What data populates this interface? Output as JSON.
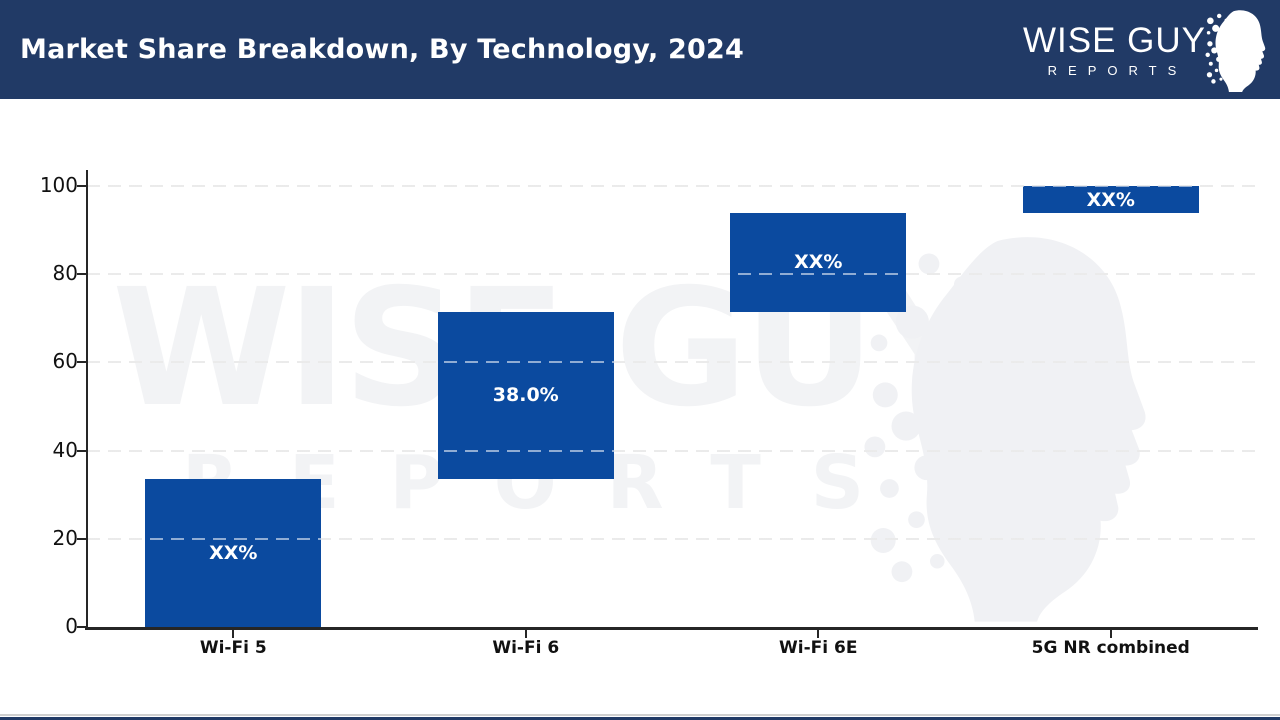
{
  "header": {
    "title": "Market Share Breakdown, By Technology, 2024",
    "logo": {
      "line1": "WISE GUY",
      "line2": "REPORTS"
    }
  },
  "watermark": {
    "line1": "WISE GUY",
    "line2": "REPORTS"
  },
  "colors": {
    "header_bg": "#213a66",
    "bar_blue": "#0b4a9f",
    "grid_gray": "#d2d2d2",
    "axis": "#262626",
    "watermark_gray": "#f1f2f5"
  },
  "chart_data": {
    "type": "bar",
    "subtype": "waterfall",
    "title": "Market Share Breakdown, By Technology, 2024",
    "categories": [
      "Wi-Fi 5",
      "Wi-Fi 6",
      "Wi-Fi 6E",
      "5G NR combined"
    ],
    "values": [
      33.5,
      38.0,
      22.3,
      6.2
    ],
    "starts": [
      0,
      33.5,
      71.5,
      93.8
    ],
    "bar_labels": [
      "XX%",
      "38.0%",
      "XX%",
      "XX%"
    ],
    "series": [
      {
        "name": "Market Share",
        "values": [
          33.5,
          38.0,
          22.3,
          6.2
        ]
      }
    ],
    "xlabel": "",
    "ylabel": "",
    "ylim": [
      0,
      100
    ],
    "yticks": [
      0,
      20,
      40,
      60,
      80,
      100
    ],
    "grid": "horizontal-dashed",
    "legend": "none",
    "bar_color": "#0b4a9f"
  }
}
